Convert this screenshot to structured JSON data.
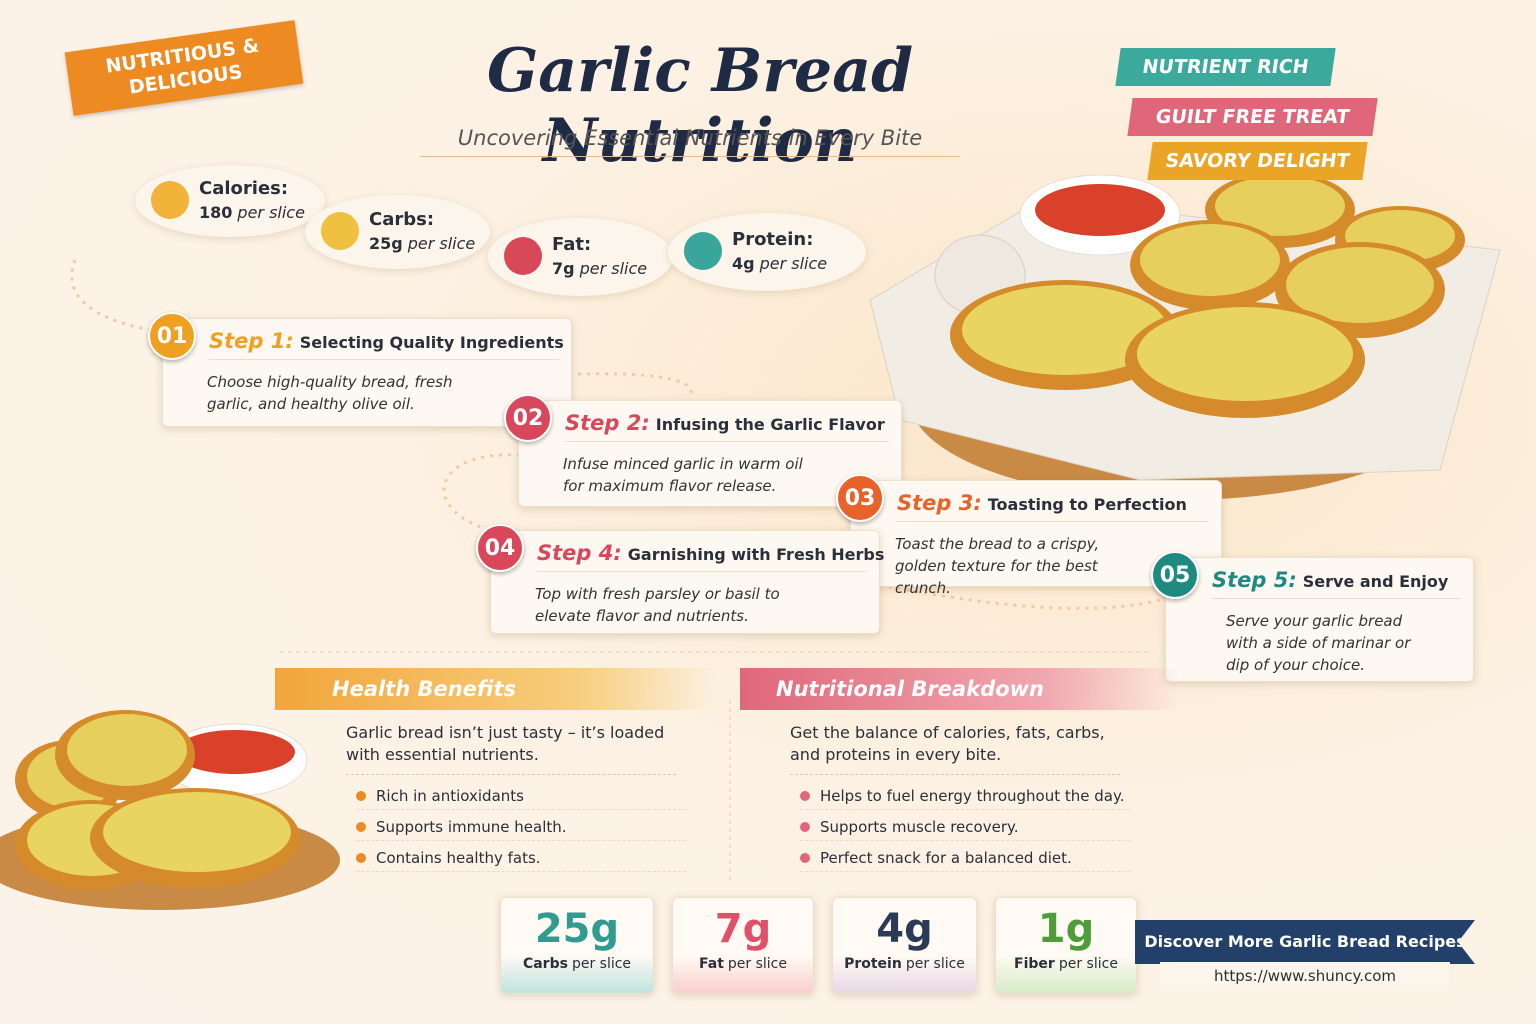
{
  "header": {
    "badge": "NUTRITIOUS & DELICIOUS",
    "title": "Garlic Bread Nutrition",
    "subtitle": "Uncovering Essential Nutrients in Every Bite"
  },
  "ribbons": [
    "NUTRIENT RICH",
    "GUILT FREE TREAT",
    "SAVORY DELIGHT"
  ],
  "nutrients": [
    {
      "label": "Calories:",
      "amount": "180",
      "unit": "per slice"
    },
    {
      "label": "Carbs:",
      "amount": "25g",
      "unit": "per slice"
    },
    {
      "label": "Fat:",
      "amount": "7g",
      "unit": "per slice"
    },
    {
      "label": "Protein:",
      "amount": "4g",
      "unit": "per slice"
    }
  ],
  "steps": [
    {
      "number": "01",
      "step": "Step 1:",
      "title": "Selecting Quality Ingredients",
      "text": "Choose high-quality bread, fresh garlic, and healthy olive oil."
    },
    {
      "number": "02",
      "step": "Step 2:",
      "title": "Infusing the Garlic Flavor",
      "text": "Infuse minced garlic in warm oil for maximum flavor release."
    },
    {
      "number": "03",
      "step": "Step 3:",
      "title": "Toasting to Perfection",
      "text": "Toast the bread to a crispy, golden texture for the best crunch."
    },
    {
      "number": "04",
      "step": "Step 4:",
      "title": "Garnishing with Fresh Herbs",
      "text": "Top with fresh parsley or basil to elevate flavor and nutrients."
    },
    {
      "number": "05",
      "step": "Step 5:",
      "title": "Serve and Enjoy",
      "text": "Serve your garlic bread with a side of marinar or dip of your choice."
    }
  ],
  "health_benefits": {
    "title": "Health Benefits",
    "intro": "Garlic bread isn’t just tasty – it’s loaded with essential nutrients.",
    "items": [
      "Rich in antioxidants",
      "Supports immune health.",
      "Contains healthy fats."
    ]
  },
  "nutritional_breakdown": {
    "title": "Nutritional Breakdown",
    "intro": "Get the balance of calories, fats, carbs, and proteins in every bite.",
    "items": [
      "Helps to fuel energy throughout the day.",
      "Supports muscle recovery.",
      "Perfect snack for a balanced diet."
    ]
  },
  "stats": [
    {
      "value": "25g",
      "label": "Carbs",
      "unit": "per slice"
    },
    {
      "value": "7g",
      "label": "Fat",
      "unit": "per slice"
    },
    {
      "value": "4g",
      "label": "Protein",
      "unit": "per slice"
    },
    {
      "value": "1g",
      "label": "Fiber",
      "unit": "per slice"
    }
  ],
  "footer": {
    "cta": "Discover More Garlic Bread Recipes",
    "url": "https://www.shuncy.com"
  }
}
